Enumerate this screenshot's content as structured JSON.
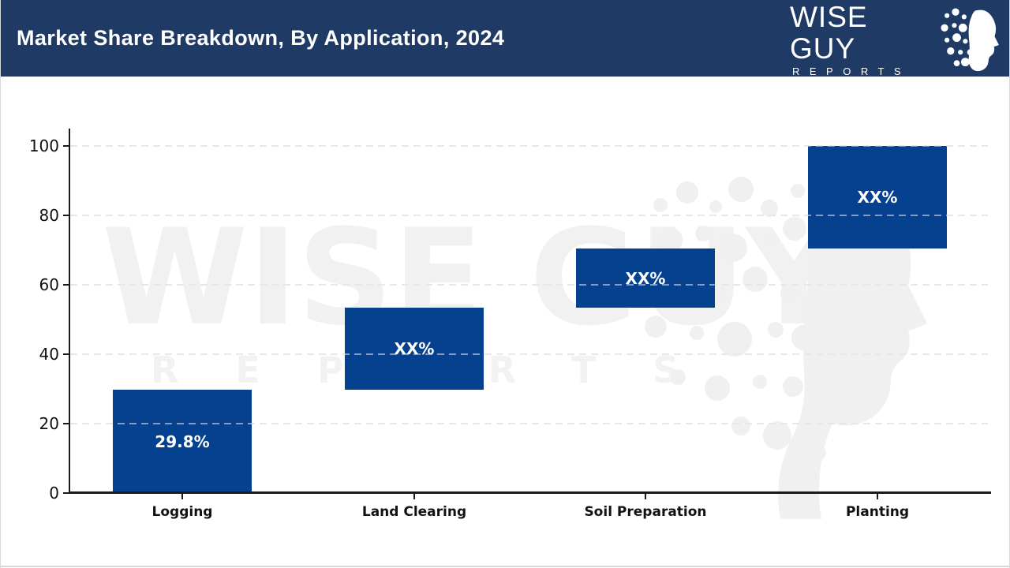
{
  "header": {
    "title": "Market Share Breakdown, By Application, 2024",
    "bg_color": "#1f3a64",
    "logo": {
      "wordmark": "WISE GUY",
      "subtitle": "REPORTS"
    }
  },
  "chart_data": {
    "type": "bar",
    "subtype": "waterfall",
    "title": "Market Share Breakdown, By Application, 2024",
    "xlabel": "",
    "ylabel": "",
    "categories": [
      "Logging",
      "Land Clearing",
      "Soil Preparation",
      "Planting"
    ],
    "segments": [
      {
        "category": "Logging",
        "start": 0,
        "end": 29.8,
        "label": "29.8%"
      },
      {
        "category": "Land Clearing",
        "start": 29.8,
        "end": 53.5,
        "label": "XX%"
      },
      {
        "category": "Soil Preparation",
        "start": 53.5,
        "end": 70.5,
        "label": "XX%"
      },
      {
        "category": "Planting",
        "start": 70.5,
        "end": 100,
        "label": "XX%"
      }
    ],
    "y_ticks": [
      0,
      20,
      40,
      60,
      80,
      100
    ],
    "ylim": [
      0,
      105
    ],
    "grid": "horizontal dashed",
    "bar_color": "#05418f",
    "axis_color": "#1a1a1a",
    "watermark": {
      "line1": "WISE GUY",
      "line2": "REPORTS"
    }
  }
}
